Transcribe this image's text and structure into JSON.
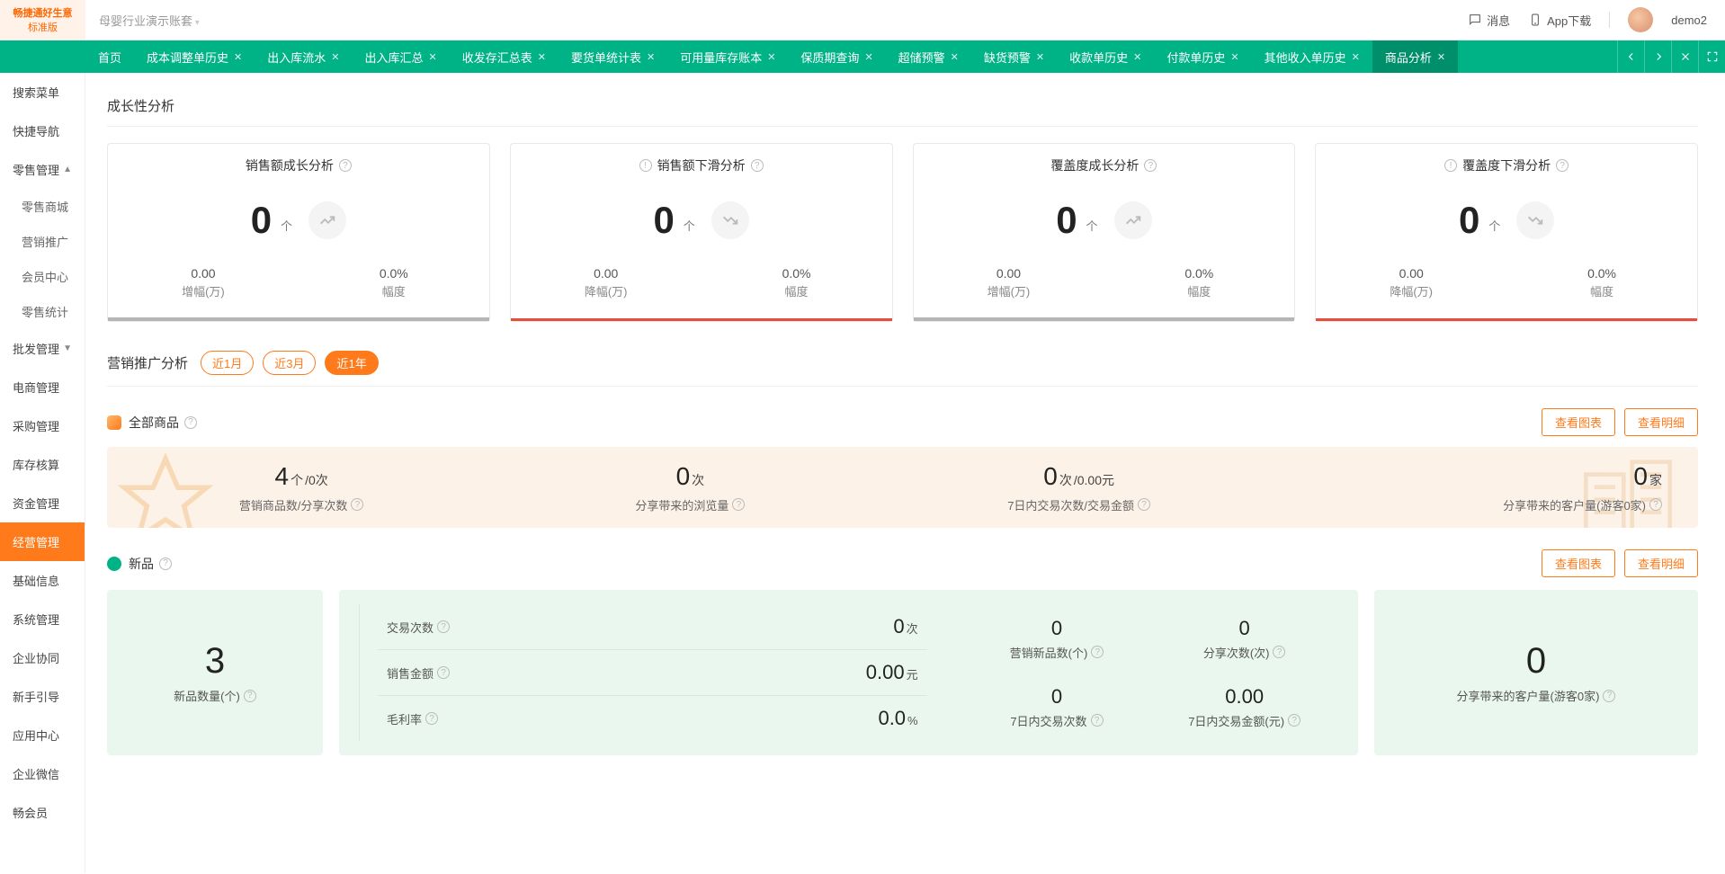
{
  "header": {
    "logo_text": "畅捷通好生意",
    "version": "标准版",
    "account": "母婴行业演示账套",
    "messages": "消息",
    "app_download": "App下载",
    "user": "demo2"
  },
  "tabs": {
    "items": [
      {
        "label": "首页",
        "closable": false
      },
      {
        "label": "成本调整单历史",
        "closable": true
      },
      {
        "label": "出入库流水",
        "closable": true
      },
      {
        "label": "出入库汇总",
        "closable": true
      },
      {
        "label": "收发存汇总表",
        "closable": true
      },
      {
        "label": "要货单统计表",
        "closable": true
      },
      {
        "label": "可用量库存账本",
        "closable": true
      },
      {
        "label": "保质期查询",
        "closable": true
      },
      {
        "label": "超储预警",
        "closable": true
      },
      {
        "label": "缺货预警",
        "closable": true
      },
      {
        "label": "收款单历史",
        "closable": true
      },
      {
        "label": "付款单历史",
        "closable": true
      },
      {
        "label": "其他收入单历史",
        "closable": true
      },
      {
        "label": "商品分析",
        "closable": true
      }
    ],
    "active_index": 13
  },
  "sidebar": {
    "items": [
      {
        "label": "搜索菜单"
      },
      {
        "label": "快捷导航"
      },
      {
        "label": "零售管理",
        "expand": "▲",
        "children": [
          "零售商城",
          "营销推广",
          "会员中心",
          "零售统计"
        ]
      },
      {
        "label": "批发管理",
        "expand": "▼"
      },
      {
        "label": "电商管理"
      },
      {
        "label": "采购管理"
      },
      {
        "label": "库存核算"
      },
      {
        "label": "资金管理"
      },
      {
        "label": "经营管理",
        "selected": true
      },
      {
        "label": "基础信息"
      },
      {
        "label": "系统管理"
      },
      {
        "label": "企业协同"
      },
      {
        "label": "新手引导"
      },
      {
        "label": "应用中心"
      },
      {
        "label": "企业微信"
      },
      {
        "label": "畅会员"
      }
    ]
  },
  "growth": {
    "title": "成长性分析",
    "cards": [
      {
        "title": "销售额成长分析",
        "value": "0",
        "unit": "个",
        "trend": "up",
        "left_val": "0.00",
        "left_lab": "增幅(万)",
        "right_val": "0.0%",
        "right_lab": "幅度",
        "accent": "gray"
      },
      {
        "title": "销售额下滑分析",
        "value": "0",
        "unit": "个",
        "trend": "down",
        "left_val": "0.00",
        "left_lab": "降幅(万)",
        "right_val": "0.0%",
        "right_lab": "幅度",
        "accent": "red",
        "warn": true
      },
      {
        "title": "覆盖度成长分析",
        "value": "0",
        "unit": "个",
        "trend": "up",
        "left_val": "0.00",
        "left_lab": "增幅(万)",
        "right_val": "0.0%",
        "right_lab": "幅度",
        "accent": "gray"
      },
      {
        "title": "覆盖度下滑分析",
        "value": "0",
        "unit": "个",
        "trend": "down",
        "left_val": "0.00",
        "left_lab": "降幅(万)",
        "right_val": "0.0%",
        "right_lab": "幅度",
        "accent": "red",
        "warn": true
      }
    ]
  },
  "marketing": {
    "title": "营销推广分析",
    "periods": [
      "近1月",
      "近3月",
      "近1年"
    ],
    "active_period": 2,
    "all_goods": {
      "label": "全部商品",
      "view_chart": "查看图表",
      "view_detail": "查看明细",
      "cells": [
        {
          "big": "4",
          "unit": "个",
          "extra": "/0次",
          "desc": "营销商品数/分享次数"
        },
        {
          "big": "0",
          "unit": "次",
          "desc": "分享带来的浏览量"
        },
        {
          "big": "0",
          "unit": "次",
          "extra": "/0.00元",
          "desc": "7日内交易次数/交易金额"
        },
        {
          "big": "0",
          "unit": "家",
          "desc": "分享带来的客户量(游客0家)"
        }
      ]
    },
    "new_goods": {
      "label": "新品",
      "view_chart": "查看图表",
      "view_detail": "查看明细",
      "left": {
        "num": "3",
        "lab": "新品数量(个)"
      },
      "kv": [
        {
          "k": "交易次数",
          "v": "0",
          "u": "次"
        },
        {
          "k": "销售金额",
          "v": "0.00",
          "u": "元"
        },
        {
          "k": "毛利率",
          "v": "0.0",
          "u": "%"
        }
      ],
      "grid": [
        {
          "v": "0",
          "k": "营销新品数(个)"
        },
        {
          "v": "0",
          "k": "分享次数(次)"
        },
        {
          "v": "0",
          "k": "7日内交易次数"
        },
        {
          "v": "0.00",
          "k": "7日内交易金额(元)"
        }
      ],
      "right": {
        "num": "0",
        "lab": "分享带来的客户量(游客0家)"
      }
    }
  }
}
